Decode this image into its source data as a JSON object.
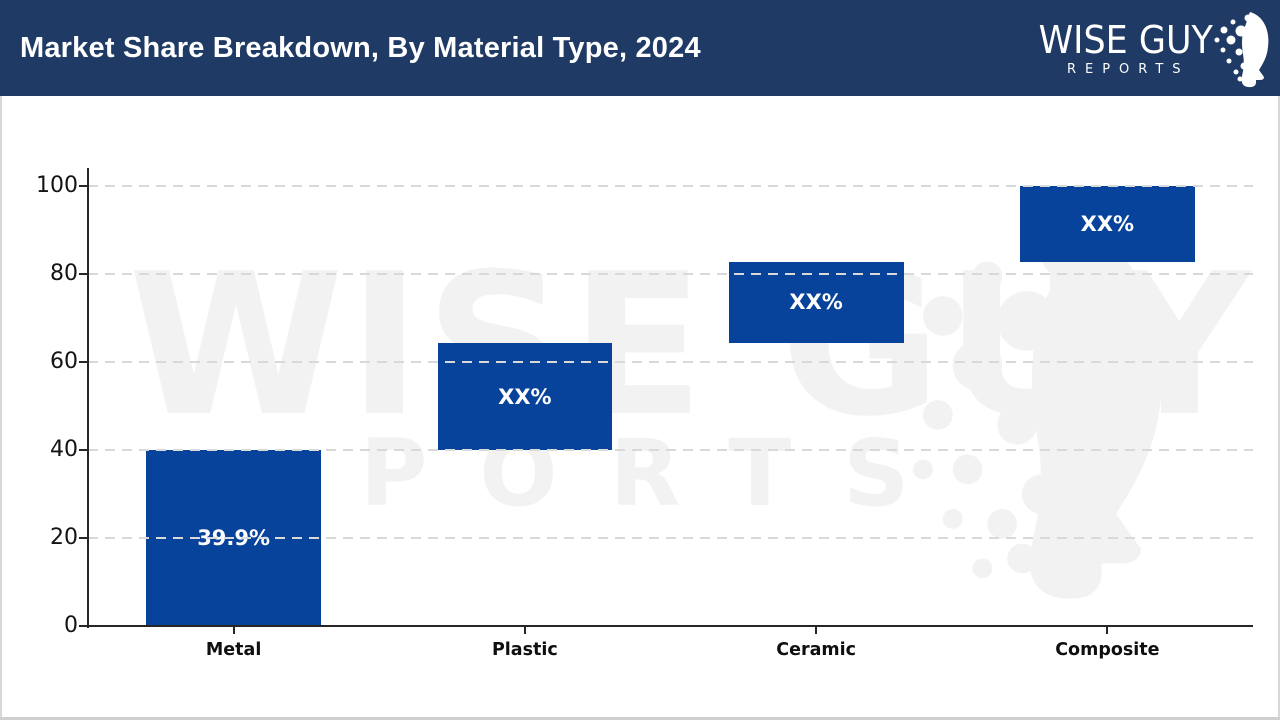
{
  "header": {
    "title": "Market Share Breakdown, By Material Type, 2024",
    "logo": {
      "line1": "WISE GUY",
      "line2": "REPORTS"
    }
  },
  "watermark": {
    "line1": "WISE GUY",
    "line2": "PORTS"
  },
  "chart_data": {
    "type": "bar",
    "subtype": "waterfall",
    "title": "Market Share Breakdown, By Material Type, 2024",
    "categories": [
      "Metal",
      "Plastic",
      "Ceramic",
      "Composite"
    ],
    "segments": [
      {
        "category": "Metal",
        "start": 0,
        "end": 39.9,
        "label": "39.9%"
      },
      {
        "category": "Plastic",
        "start": 40.0,
        "end": 64.3,
        "label": "XX%"
      },
      {
        "category": "Ceramic",
        "start": 64.3,
        "end": 82.8,
        "label": "XX%"
      },
      {
        "category": "Composite",
        "start": 82.8,
        "end": 100,
        "label": "XX%"
      }
    ],
    "yticks": [
      0,
      20,
      40,
      60,
      80,
      100
    ],
    "ylim": [
      0,
      104
    ],
    "xlabel": "",
    "ylabel": "",
    "grid": "dashed-horizontal",
    "legend": "none",
    "bar_color": "#07439a",
    "bar_label_color": "#ffffff"
  },
  "colors": {
    "header_bg": "#1f3a64",
    "axis": "#262626",
    "grid": "#d9d9d9",
    "watermark": "#f2f2f2",
    "page_border": "#d8d8d8"
  }
}
